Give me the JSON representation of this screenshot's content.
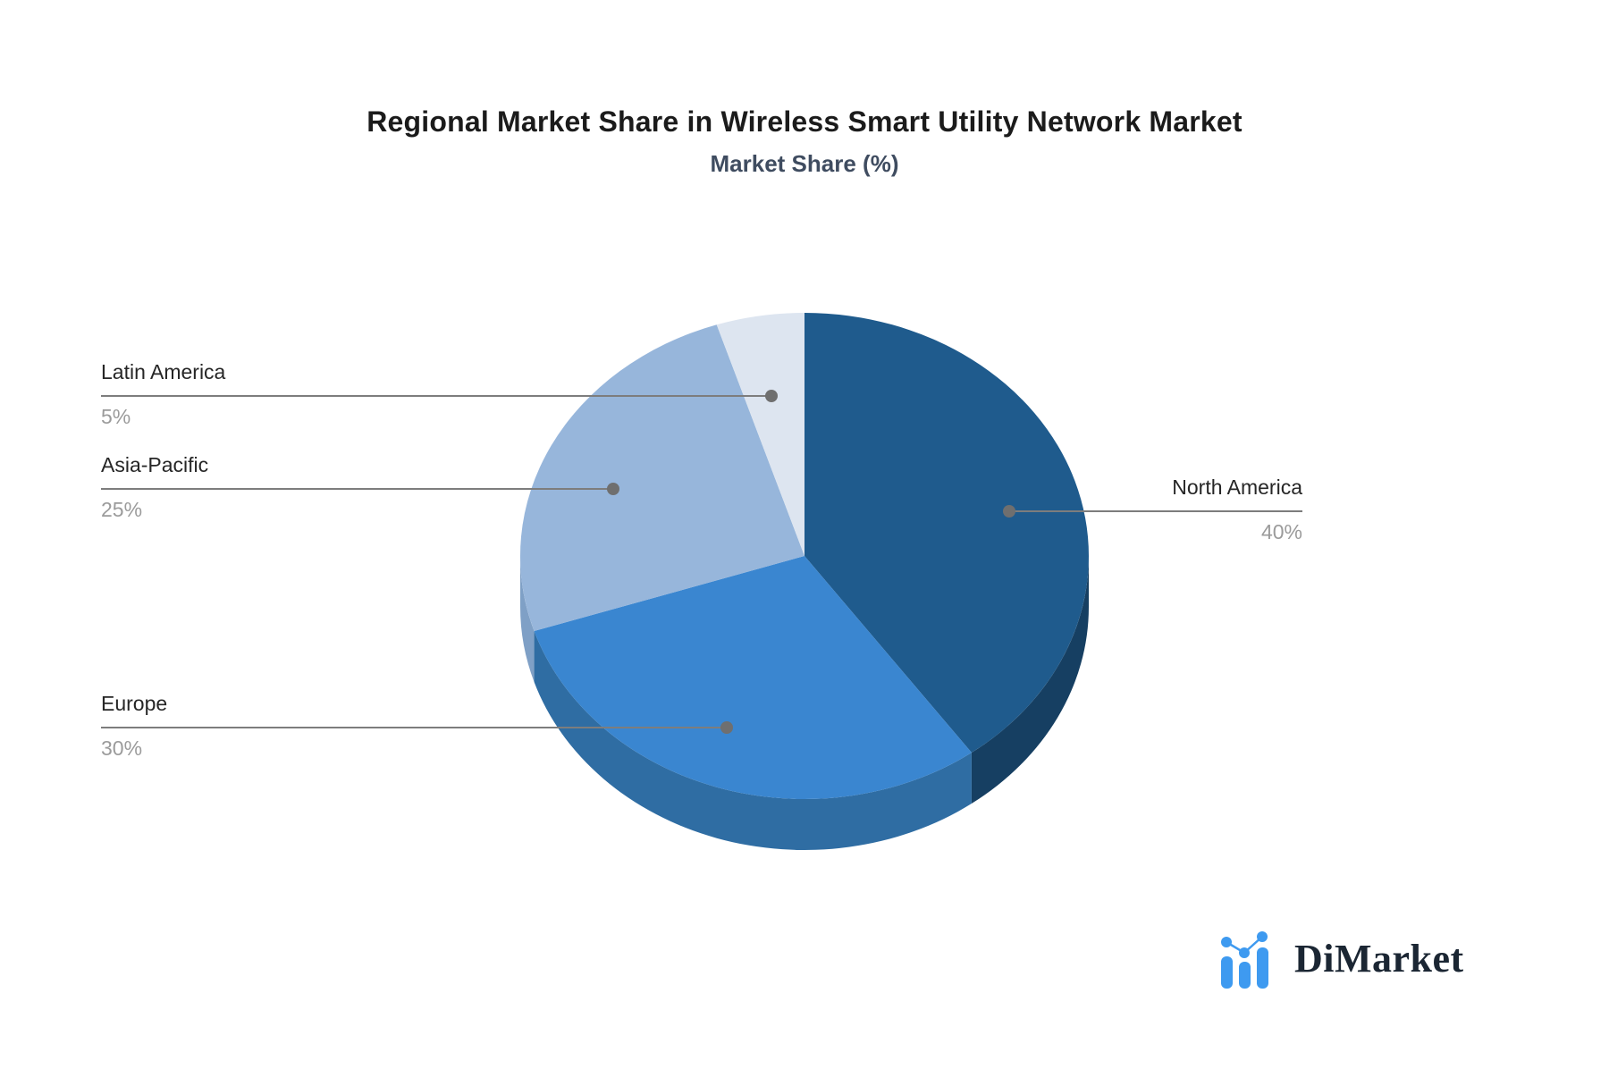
{
  "title": "Regional Market Share in Wireless Smart Utility Network Market",
  "subtitle": "Market Share (%)",
  "chart_data": {
    "type": "pie",
    "style": "3d",
    "title": "Regional Market Share in Wireless Smart Utility Network Market",
    "subtitle": "Market Share (%)",
    "unit": "%",
    "start_angle_deg": 90,
    "direction": "clockwise",
    "legend_position": "callouts",
    "slices": [
      {
        "label": "North America",
        "value": 40,
        "pct_label": "40%",
        "color": "#1f5b8d",
        "side_color": "#163f62"
      },
      {
        "label": "Europe",
        "value": 30,
        "pct_label": "30%",
        "color": "#3a86d0",
        "side_color": "#2f6da3"
      },
      {
        "label": "Asia-Pacific",
        "value": 25,
        "pct_label": "25%",
        "color": "#97b6db",
        "side_color": "#7fa0c6"
      },
      {
        "label": "Latin America",
        "value": 5,
        "pct_label": "5%",
        "color": "#dde5f0",
        "side_color": "#bcc9db"
      }
    ]
  },
  "callout_style": {
    "line_color": "#7d7d7d",
    "dot_color": "#6f6f6f"
  },
  "branding": {
    "logo_text": "DiMarket",
    "logo_icon": "bar-chart-icon",
    "icon_color": "#3e9af0",
    "text_color": "#1b2633"
  }
}
